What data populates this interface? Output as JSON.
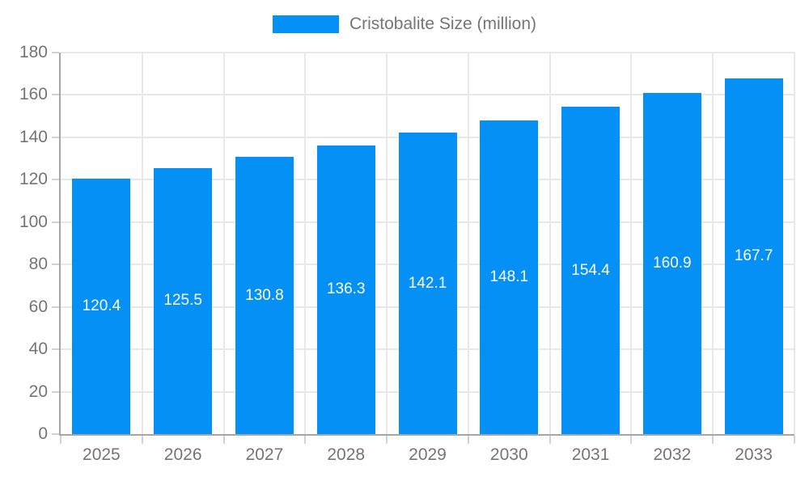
{
  "legend": {
    "label": "Cristobalite Size (million)"
  },
  "chart_data": {
    "type": "bar",
    "title": "",
    "xlabel": "",
    "ylabel": "",
    "categories": [
      "2025",
      "2026",
      "2027",
      "2028",
      "2029",
      "2030",
      "2031",
      "2032",
      "2033"
    ],
    "series": [
      {
        "name": "Cristobalite Size (million)",
        "values": [
          120.4,
          125.5,
          130.8,
          136.3,
          142.1,
          148.1,
          154.4,
          160.9,
          167.7
        ]
      }
    ],
    "value_labels": [
      "120.4",
      "125.5",
      "130.8",
      "136.3",
      "142.1",
      "148.1",
      "154.4",
      "160.9",
      "167.7"
    ],
    "y_ticks": [
      0,
      20,
      40,
      60,
      80,
      100,
      120,
      140,
      160,
      180
    ],
    "ylim": [
      0,
      180
    ],
    "grid": true,
    "legend_position": "top-center"
  },
  "colors": {
    "bar": "#0590f5",
    "grid": "#e8e8e8",
    "axis": "#a6a6a6",
    "tick": "#d2d2d2",
    "axis_text": "#757575",
    "value_text": "#ffffff",
    "background": "#ffffff"
  }
}
